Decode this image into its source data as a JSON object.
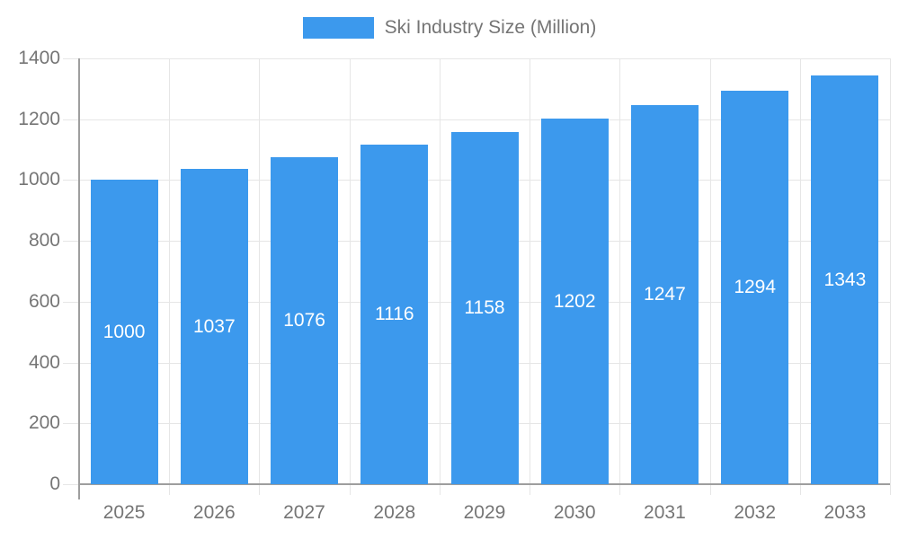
{
  "legend": {
    "label": "Ski Industry Size (Million)"
  },
  "colors": {
    "bar": "#3C99ED",
    "grid": "#E6E6E6",
    "axis": "#9E9E9E",
    "axis_text": "#757575",
    "legend_text": "#757575",
    "bar_label_text": "#FFFFFF",
    "background": "#FFFFFF"
  },
  "chart_data": {
    "type": "bar",
    "title": "Ski Industry Size (Million)",
    "categories": [
      "2025",
      "2026",
      "2027",
      "2028",
      "2029",
      "2030",
      "2031",
      "2032",
      "2033"
    ],
    "values": [
      1000,
      1037,
      1076,
      1116,
      1158,
      1202,
      1247,
      1294,
      1343
    ],
    "series": [
      {
        "name": "Ski Industry Size (Million)",
        "values": [
          1000,
          1037,
          1076,
          1116,
          1158,
          1202,
          1247,
          1294,
          1343
        ]
      }
    ],
    "xlabel": "",
    "ylabel": "",
    "ylim": [
      0,
      1400
    ],
    "yticks": [
      0,
      200,
      400,
      600,
      800,
      1000,
      1200,
      1400
    ],
    "grid": true,
    "legend_position": "top-center",
    "value_labels": "inside-center-white"
  }
}
